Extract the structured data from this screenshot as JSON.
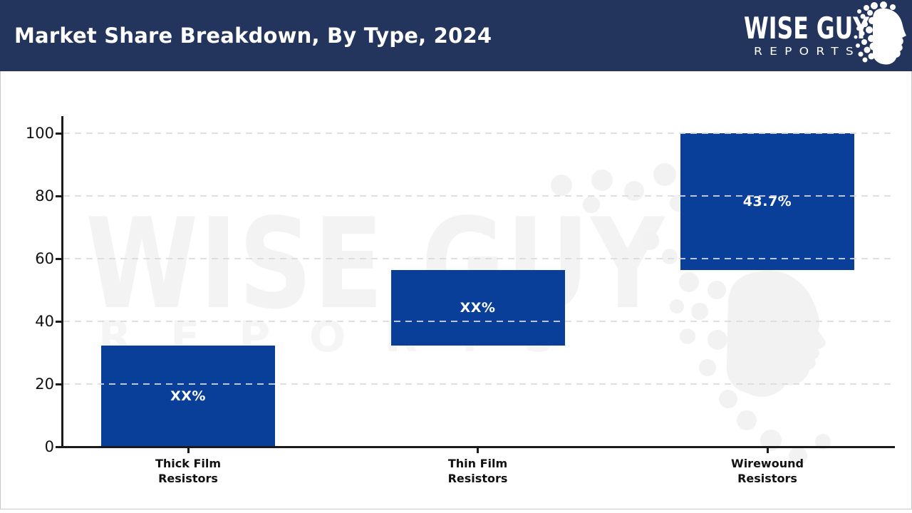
{
  "header": {
    "title": "Market Share Breakdown, By Type, 2024",
    "logo": {
      "wordmark": "WISE GUY",
      "subtext": "REPORTS"
    }
  },
  "watermark": {
    "wordmark": "WISE GUY",
    "subtext": "REPORTS"
  },
  "colors": {
    "header_bg": "#23355c",
    "bar_fill": "#0a3f99",
    "bar_label_text": "#ffffff",
    "gridline": "#dbdbdb",
    "axis_line": "#1a1a1a",
    "tick_label": "#111111",
    "watermark": "#f3f3f3",
    "page_bg": "#ffffff",
    "page_border": "#c9c9c9"
  },
  "chart_data": {
    "type": "bar",
    "subtype": "floating-waterfall",
    "title": "Market Share Breakdown, By Type, 2024",
    "categories": [
      {
        "line1": "Thick Film",
        "line2": "Resistors"
      },
      {
        "line1": "Thin Film",
        "line2": "Resistors"
      },
      {
        "line1": "Wirewound",
        "line2": "Resistors"
      }
    ],
    "segments": [
      {
        "category": "Thick Film Resistors",
        "start": 0,
        "end": 32.3,
        "value_label": "XX%",
        "estimated_value": 32.3
      },
      {
        "category": "Thin Film Resistors",
        "start": 32.3,
        "end": 56.3,
        "value_label": "XX%",
        "estimated_value": 24.0
      },
      {
        "category": "Wirewound Resistors",
        "start": 56.3,
        "end": 100,
        "value_label": "43.7%",
        "estimated_value": 43.7
      }
    ],
    "y_ticks": [
      0,
      20,
      40,
      60,
      80,
      100
    ],
    "ylim": [
      0,
      105.5
    ],
    "xlabel": "",
    "ylabel": "",
    "grid": "horizontal-dashed",
    "legend": "none"
  }
}
